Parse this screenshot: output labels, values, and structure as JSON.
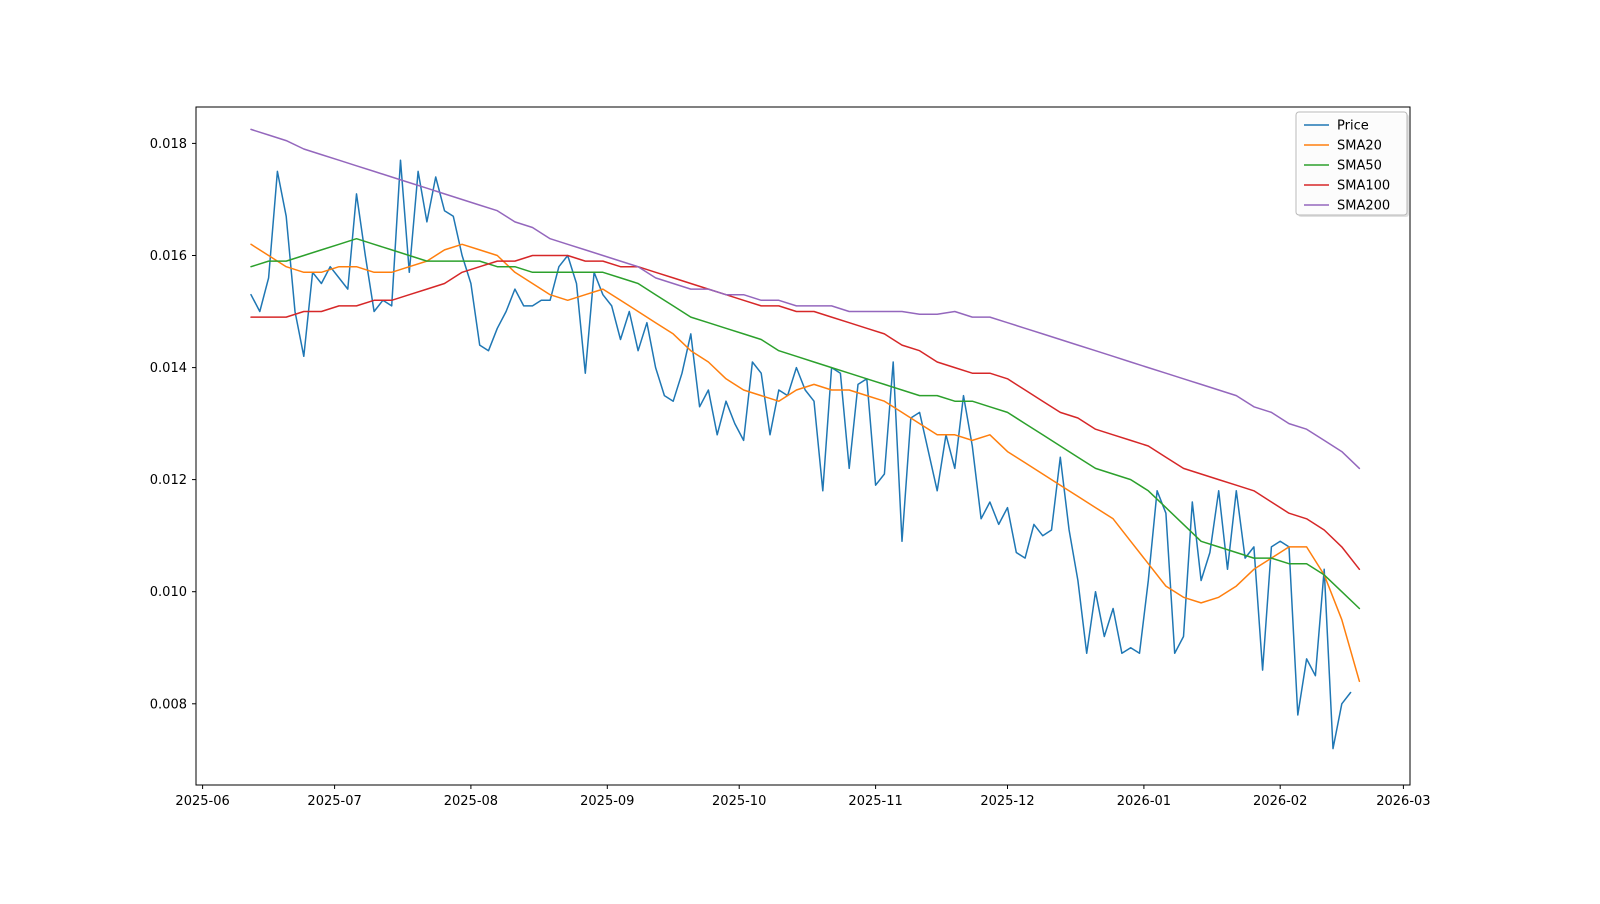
{
  "chart_data": {
    "type": "line",
    "title": "",
    "xlabel": "",
    "ylabel": "",
    "grid": false,
    "legend_position": "upper right",
    "x_tick_labels": [
      "2025-06",
      "2025-07",
      "2025-08",
      "2025-09",
      "2025-10",
      "2025-11",
      "2025-12",
      "2026-01",
      "2026-02",
      "2026-03"
    ],
    "x_tick_days": [
      0,
      30,
      61,
      92,
      122,
      153,
      183,
      214,
      245,
      273
    ],
    "y_ticks": [
      0.008,
      0.01,
      0.012,
      0.014,
      0.016,
      0.018
    ],
    "y_tick_labels": [
      "0.008",
      "0.010",
      "0.012",
      "0.014",
      "0.016",
      "0.018"
    ],
    "xlim_days": [
      -1.5,
      274.5
    ],
    "ylim": [
      0.00655,
      0.01865
    ],
    "series": [
      {
        "name": "Price",
        "color": "#1f77b4",
        "x_start_day": 11,
        "x_step_days": 2,
        "values": [
          0.0153,
          0.015,
          0.0156,
          0.0175,
          0.0167,
          0.015,
          0.0142,
          0.0157,
          0.0155,
          0.0158,
          0.0156,
          0.0154,
          0.0171,
          0.016,
          0.015,
          0.0152,
          0.0151,
          0.0177,
          0.0157,
          0.0175,
          0.0166,
          0.0174,
          0.0168,
          0.0167,
          0.016,
          0.0155,
          0.0144,
          0.0143,
          0.0147,
          0.015,
          0.0154,
          0.0151,
          0.0151,
          0.0152,
          0.0152,
          0.0158,
          0.016,
          0.0155,
          0.0139,
          0.0157,
          0.0153,
          0.0151,
          0.0145,
          0.015,
          0.0143,
          0.0148,
          0.014,
          0.0135,
          0.0134,
          0.0139,
          0.0146,
          0.0133,
          0.0136,
          0.0128,
          0.0134,
          0.013,
          0.0127,
          0.0141,
          0.0139,
          0.0128,
          0.0136,
          0.0135,
          0.014,
          0.0136,
          0.0134,
          0.0118,
          0.014,
          0.0139,
          0.0122,
          0.0137,
          0.0138,
          0.0119,
          0.0121,
          0.0141,
          0.0109,
          0.0131,
          0.0132,
          0.0125,
          0.0118,
          0.0128,
          0.0122,
          0.0135,
          0.0126,
          0.0113,
          0.0116,
          0.0112,
          0.0115,
          0.0107,
          0.0106,
          0.0112,
          0.011,
          0.0111,
          0.0124,
          0.0111,
          0.0102,
          0.0089,
          0.01,
          0.0092,
          0.0097,
          0.0089,
          0.009,
          0.0089,
          0.0102,
          0.0118,
          0.0114,
          0.0089,
          0.0092,
          0.0116,
          0.0102,
          0.0107,
          0.0118,
          0.0104,
          0.0118,
          0.0106,
          0.0108,
          0.0086,
          0.0108,
          0.0109,
          0.0108,
          0.0078,
          0.0088,
          0.0085,
          0.0104,
          0.0072,
          0.008,
          0.0082
        ]
      },
      {
        "name": "SMA20",
        "color": "#ff7f0e",
        "x_start_day": 11,
        "x_step_days": 4,
        "values": [
          0.0162,
          0.016,
          0.0158,
          0.0157,
          0.0157,
          0.0158,
          0.0158,
          0.0157,
          0.0157,
          0.0158,
          0.0159,
          0.0161,
          0.0162,
          0.0161,
          0.016,
          0.0157,
          0.0155,
          0.0153,
          0.0152,
          0.0153,
          0.0154,
          0.0152,
          0.015,
          0.0148,
          0.0146,
          0.0143,
          0.0141,
          0.0138,
          0.0136,
          0.0135,
          0.0134,
          0.0136,
          0.0137,
          0.0136,
          0.0136,
          0.0135,
          0.0134,
          0.0132,
          0.013,
          0.0128,
          0.0128,
          0.0127,
          0.0128,
          0.0125,
          0.0123,
          0.0121,
          0.0119,
          0.0117,
          0.0115,
          0.0113,
          0.0109,
          0.0105,
          0.0101,
          0.0099,
          0.0098,
          0.0099,
          0.0101,
          0.0104,
          0.0106,
          0.0108,
          0.0108,
          0.0103,
          0.0095,
          0.0084
        ]
      },
      {
        "name": "SMA50",
        "color": "#2ca02c",
        "x_start_day": 11,
        "x_step_days": 4,
        "values": [
          0.0158,
          0.0159,
          0.0159,
          0.016,
          0.0161,
          0.0162,
          0.0163,
          0.0162,
          0.0161,
          0.016,
          0.0159,
          0.0159,
          0.0159,
          0.0159,
          0.0158,
          0.0158,
          0.0157,
          0.0157,
          0.0157,
          0.0157,
          0.0157,
          0.0156,
          0.0155,
          0.0153,
          0.0151,
          0.0149,
          0.0148,
          0.0147,
          0.0146,
          0.0145,
          0.0143,
          0.0142,
          0.0141,
          0.014,
          0.0139,
          0.0138,
          0.0137,
          0.0136,
          0.0135,
          0.0135,
          0.0134,
          0.0134,
          0.0133,
          0.0132,
          0.013,
          0.0128,
          0.0126,
          0.0124,
          0.0122,
          0.0121,
          0.012,
          0.0118,
          0.0115,
          0.0112,
          0.0109,
          0.0108,
          0.0107,
          0.0106,
          0.0106,
          0.0105,
          0.0105,
          0.0103,
          0.01,
          0.0097
        ]
      },
      {
        "name": "SMA100",
        "color": "#d62728",
        "x_start_day": 11,
        "x_step_days": 4,
        "values": [
          0.0149,
          0.0149,
          0.0149,
          0.015,
          0.015,
          0.0151,
          0.0151,
          0.0152,
          0.0152,
          0.0153,
          0.0154,
          0.0155,
          0.0157,
          0.0158,
          0.0159,
          0.0159,
          0.016,
          0.016,
          0.016,
          0.0159,
          0.0159,
          0.0158,
          0.0158,
          0.0157,
          0.0156,
          0.0155,
          0.0154,
          0.0153,
          0.0152,
          0.0151,
          0.0151,
          0.015,
          0.015,
          0.0149,
          0.0148,
          0.0147,
          0.0146,
          0.0144,
          0.0143,
          0.0141,
          0.014,
          0.0139,
          0.0139,
          0.0138,
          0.0136,
          0.0134,
          0.0132,
          0.0131,
          0.0129,
          0.0128,
          0.0127,
          0.0126,
          0.0124,
          0.0122,
          0.0121,
          0.012,
          0.0119,
          0.0118,
          0.0116,
          0.0114,
          0.0113,
          0.0111,
          0.0108,
          0.0104
        ]
      },
      {
        "name": "SMA200",
        "color": "#9467bd",
        "x_start_day": 11,
        "x_step_days": 4,
        "values": [
          0.01825,
          0.01815,
          0.01805,
          0.0179,
          0.0178,
          0.0177,
          0.0176,
          0.0175,
          0.0174,
          0.0173,
          0.0172,
          0.0171,
          0.017,
          0.0169,
          0.0168,
          0.0166,
          0.0165,
          0.0163,
          0.0162,
          0.0161,
          0.016,
          0.0159,
          0.0158,
          0.0156,
          0.0155,
          0.0154,
          0.0154,
          0.0153,
          0.0153,
          0.0152,
          0.0152,
          0.0151,
          0.0151,
          0.0151,
          0.015,
          0.015,
          0.015,
          0.015,
          0.01495,
          0.01495,
          0.015,
          0.0149,
          0.0149,
          0.0148,
          0.0147,
          0.0146,
          0.0145,
          0.0144,
          0.0143,
          0.0142,
          0.0141,
          0.014,
          0.0139,
          0.0138,
          0.0137,
          0.0136,
          0.0135,
          0.0133,
          0.0132,
          0.013,
          0.0129,
          0.0127,
          0.0125,
          0.0122
        ]
      }
    ],
    "legend_entries": [
      "Price",
      "SMA20",
      "SMA50",
      "SMA100",
      "SMA200"
    ]
  }
}
